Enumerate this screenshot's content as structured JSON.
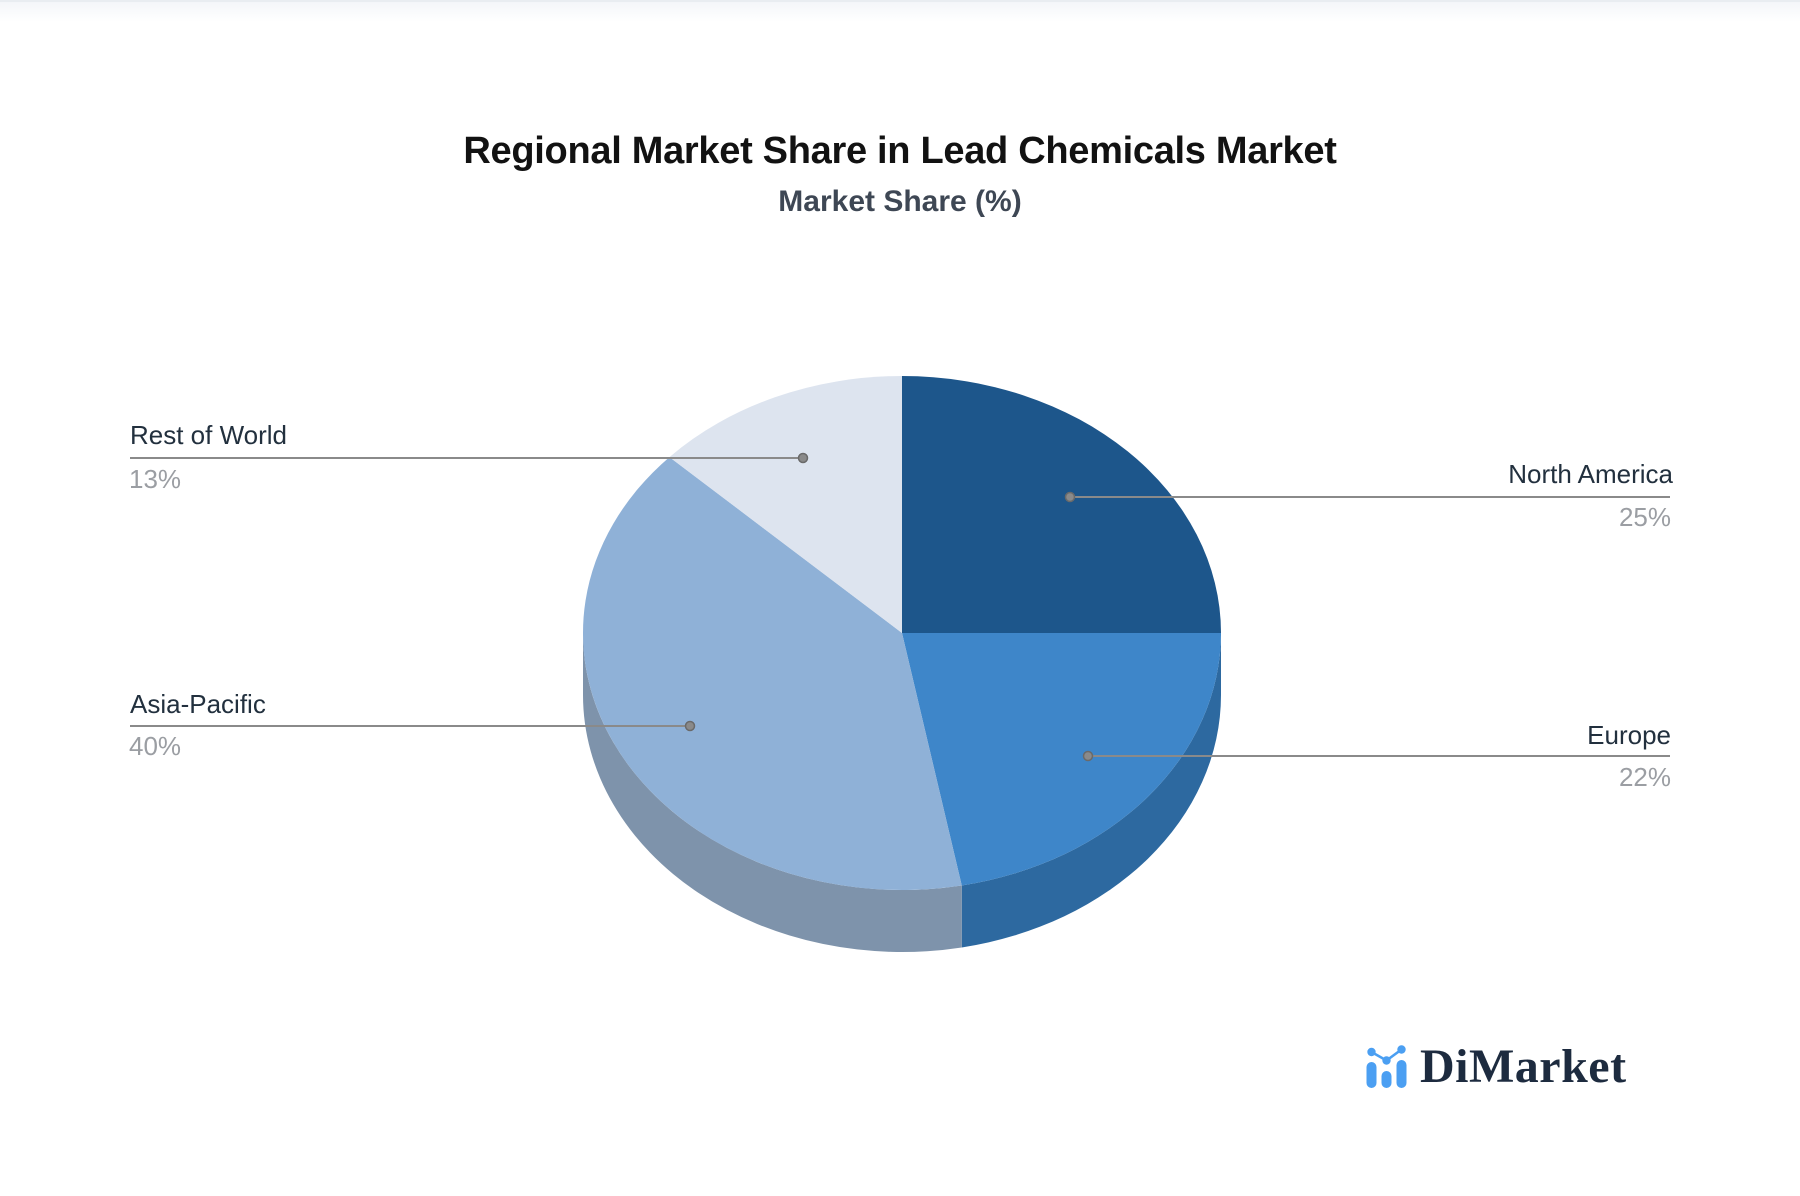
{
  "header": {
    "title": "Regional Market Share in Lead Chemicals Market",
    "subtitle": "Market Share (%)"
  },
  "chart_data": {
    "type": "pie",
    "style": "3d",
    "title": "Regional Market Share in Lead Chemicals Market",
    "subtitle": "Market Share (%)",
    "unit": "%",
    "direction": "clockwise",
    "start_angle": "12-oclock",
    "legend_position": "callout-labels",
    "slices": [
      {
        "label": "North America",
        "value": 25,
        "pct": "25%",
        "color": "#1d568b",
        "side_color": "#16456f",
        "callout_side": "right"
      },
      {
        "label": "Europe",
        "value": 22,
        "pct": "22%",
        "color": "#3e86c9",
        "side_color": "#2d69a0",
        "callout_side": "right"
      },
      {
        "label": "Asia-Pacific",
        "value": 40,
        "pct": "40%",
        "color": "#8fb1d7",
        "side_color": "#7e93ab",
        "callout_side": "left"
      },
      {
        "label": "Rest of World",
        "value": 13,
        "pct": "13%",
        "color": "#dde4ef",
        "side_color": "#c6cfdd",
        "callout_side": "left"
      }
    ]
  },
  "branding": {
    "logo_text": "DiMarket",
    "logo_icon": "bar-line-chart-icon",
    "icon_color": "#4b9ff2",
    "text_color": "#1d2b3f"
  },
  "colors": {
    "label_text": "#22303e",
    "pct_text": "#9b9ea3",
    "leader_line": "#8a8a8a",
    "title": "#121212",
    "subtitle": "#3e4754"
  }
}
